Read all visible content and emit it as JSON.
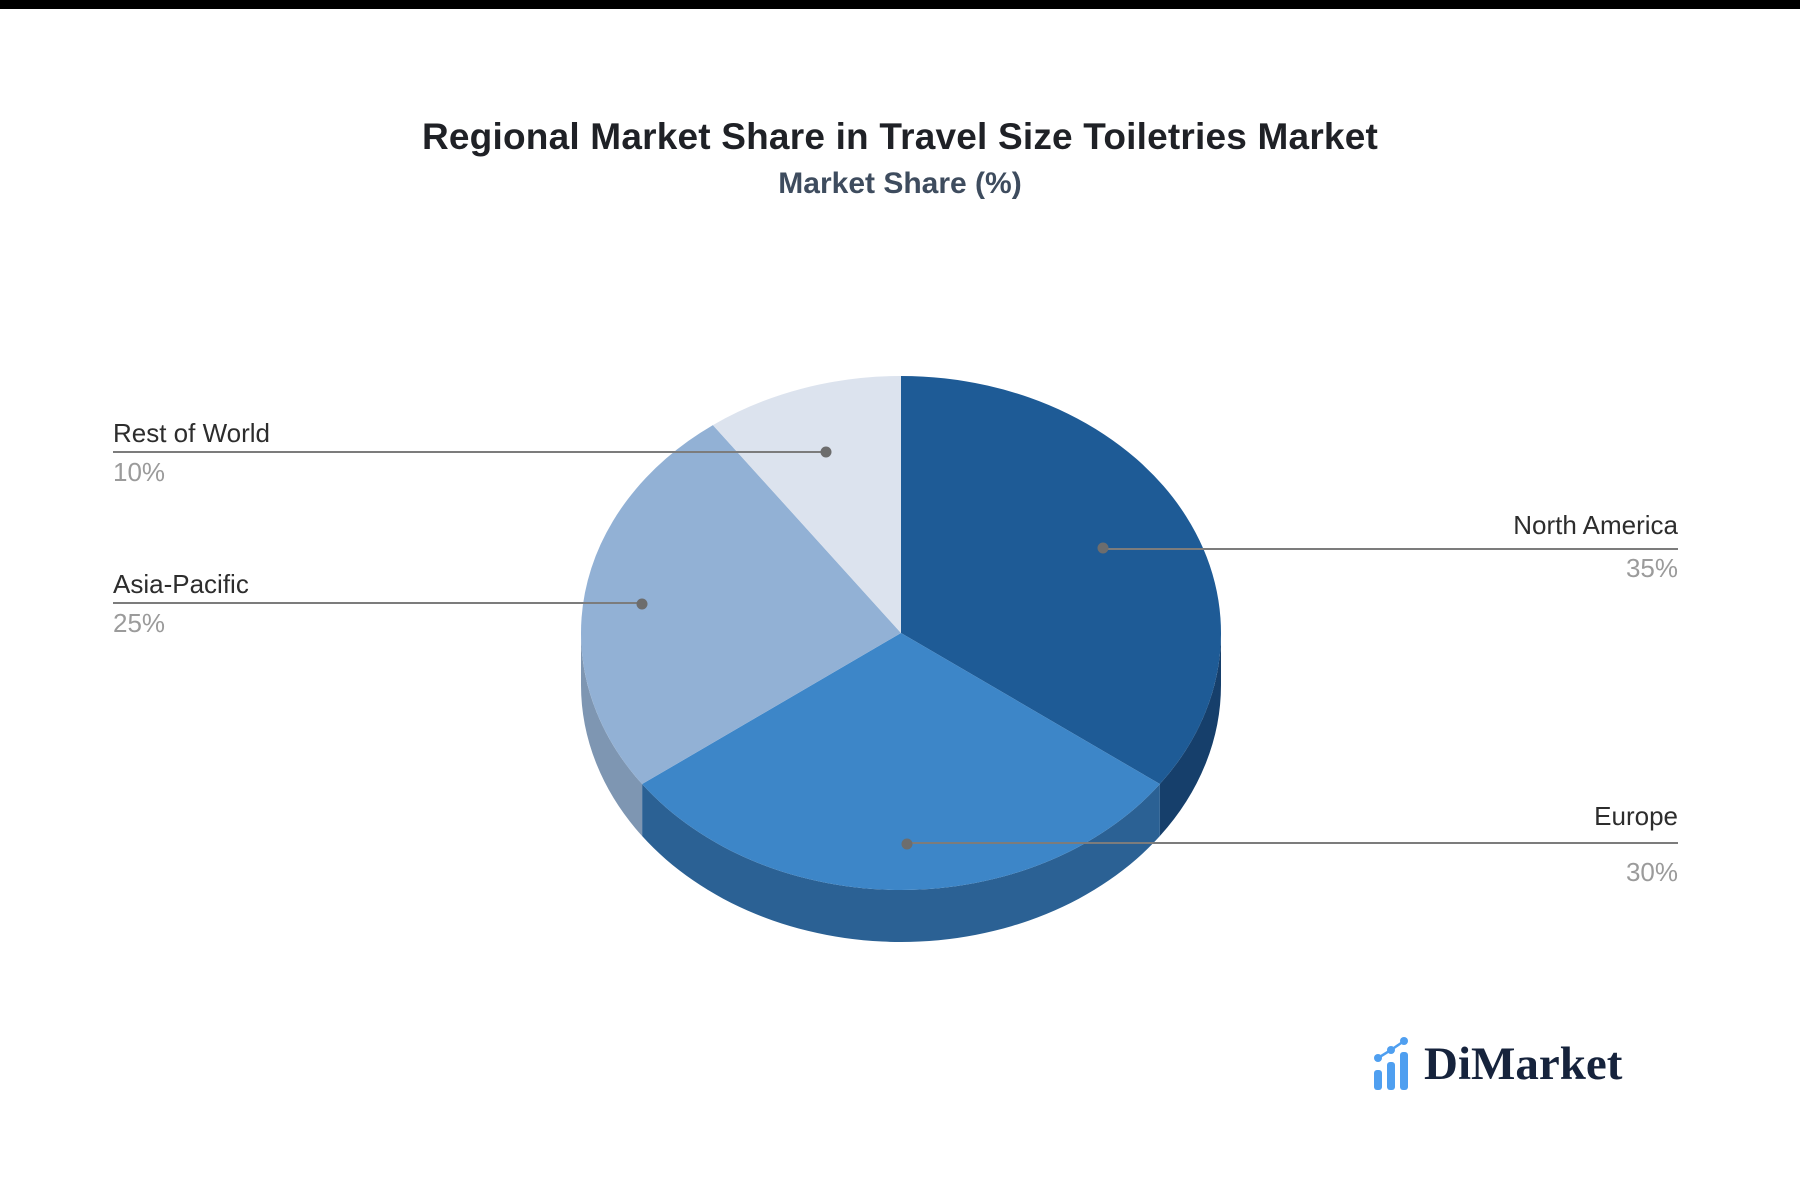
{
  "page": {
    "background": "#ffffff",
    "top_bar_color": "#000000"
  },
  "header": {
    "title": "Regional Market Share in Travel Size Toiletries Market",
    "subtitle": "Market Share (%)"
  },
  "branding": {
    "logo_text": "DiMarket",
    "logo_text_color": "#16233c",
    "logo_icon_color": "#4f9ff0",
    "logo_icon": "bar-chart-logo-icon"
  },
  "chart_data": {
    "type": "pie",
    "style": "3d",
    "title": "Regional Market Share in Travel Size Toiletries Market",
    "subtitle": "Market Share (%)",
    "unit": "%",
    "direction": "clockwise",
    "start_angle_deg": -90,
    "legend_position": "none",
    "label_line_color": "#7c7c7c",
    "label_dot_color": "#6d6d6d",
    "label_text_color": "#2d2d2d",
    "value_text_color": "#9b9b9b",
    "slices": [
      {
        "label": "North America",
        "value": 35,
        "value_text": "35%",
        "color": "#1e5b96",
        "side_color": "#163f6b",
        "callout_side": "right"
      },
      {
        "label": "Europe",
        "value": 30,
        "value_text": "30%",
        "color": "#3d86c8",
        "side_color": "#2b6194",
        "callout_side": "right"
      },
      {
        "label": "Asia-Pacific",
        "value": 25,
        "value_text": "25%",
        "color": "#92b1d5",
        "side_color": "#7e96b2",
        "callout_side": "left"
      },
      {
        "label": "Rest of World",
        "value": 10,
        "value_text": "10%",
        "color": "#dce3ee",
        "side_color": "#c2ccdc",
        "callout_side": "left"
      }
    ]
  }
}
